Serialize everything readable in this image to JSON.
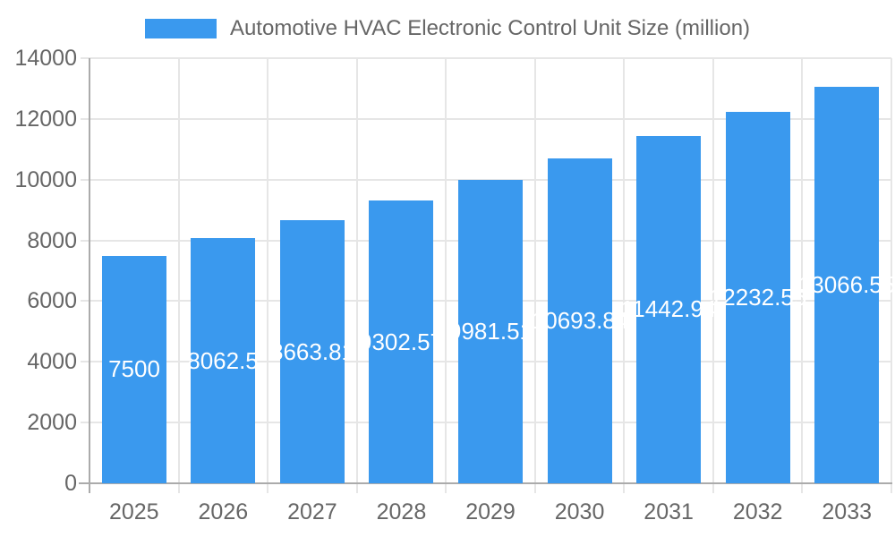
{
  "legend": {
    "label": "Automotive HVAC Electronic Control Unit Size (million)"
  },
  "colors": {
    "bar": "#3A99EE",
    "grid": "#E6E6E6",
    "axis": "#ABABAB",
    "tick_text": "#666666",
    "bar_label_text": "#FFFFFF",
    "background": "#FFFFFF"
  },
  "chart_data": {
    "type": "bar",
    "title": "Automotive HVAC Electronic Control Unit Size (million)",
    "categories": [
      "2025",
      "2026",
      "2027",
      "2028",
      "2029",
      "2030",
      "2031",
      "2032",
      "2033"
    ],
    "values": [
      7500,
      8062.5,
      8663.81,
      9302.57,
      9981.51,
      10693.84,
      11442.94,
      12232.55,
      13066.55
    ],
    "series_name": "Automotive HVAC Electronic Control Unit Size (million)",
    "xlabel": "",
    "ylabel": "",
    "y_ticks": [
      0,
      2000,
      4000,
      6000,
      8000,
      10000,
      12000,
      14000
    ],
    "ylim": [
      0,
      14000
    ],
    "grid": true,
    "legend_position": "top",
    "bar_label_color": "#FFFFFF",
    "bar_labels_inside": true
  }
}
